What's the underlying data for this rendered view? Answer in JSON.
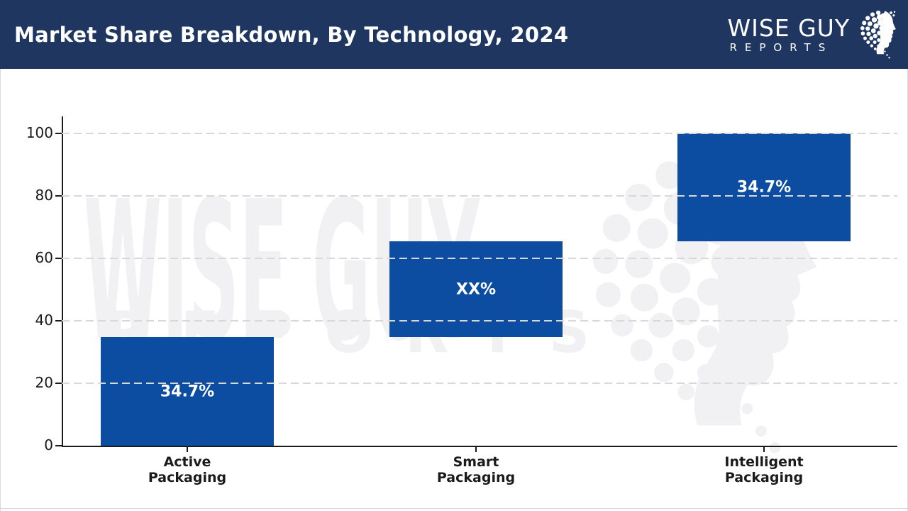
{
  "header": {
    "title": "Market Share Breakdown, By Technology, 2024",
    "logo": {
      "brand_line1": "WISE GUY",
      "brand_line2": "REPORTS"
    }
  },
  "watermark": {
    "line1": "WISE GUY",
    "line2": "REPORTS"
  },
  "chart_data": {
    "type": "bar",
    "subtype": "floating-segment-bar",
    "title": "Market Share Breakdown, By Technology, 2024",
    "categories": [
      "Active Packaging",
      "Smart Packaging",
      "Intelligent Packaging"
    ],
    "segments": [
      {
        "category": "Active Packaging",
        "start": 0,
        "end": 34.7,
        "label": "34.7%"
      },
      {
        "category": "Smart Packaging",
        "start": 34.7,
        "end": 65.3,
        "label": "XX%"
      },
      {
        "category": "Intelligent Packaging",
        "start": 65.3,
        "end": 100,
        "label": "34.7%"
      }
    ],
    "values": [
      34.7,
      30.6,
      34.7
    ],
    "yticks": [
      0,
      20,
      40,
      60,
      80,
      100
    ],
    "ylim": [
      0,
      100
    ],
    "grid": "horizontal-dashed",
    "legend": "none",
    "bar_color": "#0D4DA1",
    "label_color": "#FFFFFF"
  },
  "colors": {
    "header_bg": "#1F3660",
    "bar": "#0D4DA1",
    "watermark": "#F1F1F3",
    "grid": "#D8D8D8",
    "axis": "#1A1A1A"
  }
}
